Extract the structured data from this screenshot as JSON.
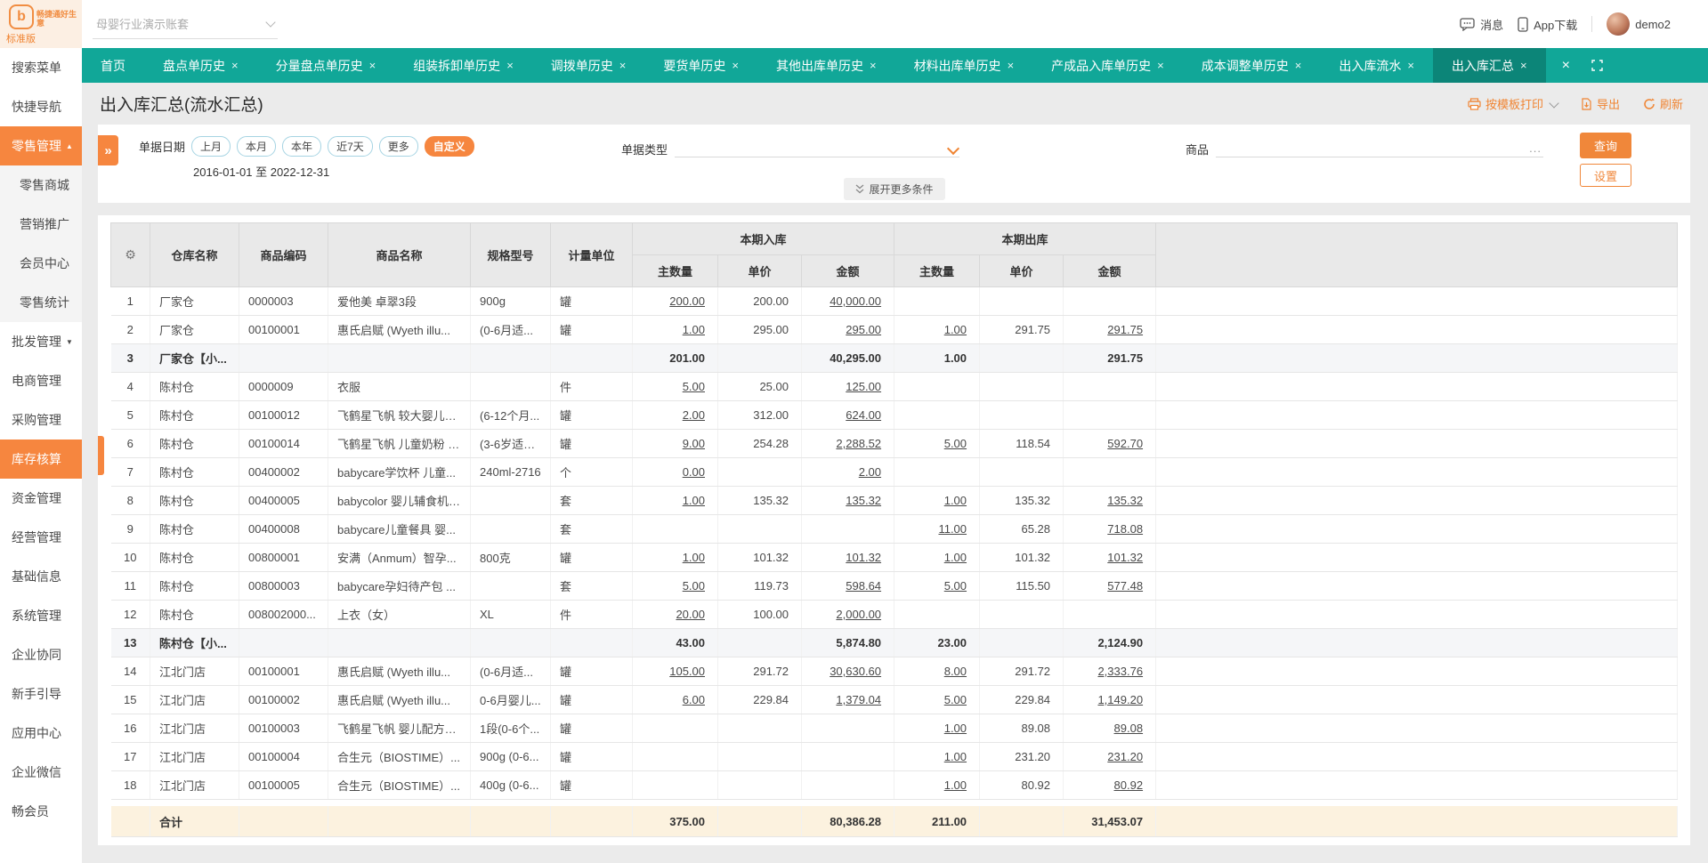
{
  "brand": {
    "name": "畅捷通好生意",
    "edition": "标准版",
    "orange": "#F18D42"
  },
  "topbar": {
    "account": "母婴行业演示账套",
    "message": "消息",
    "app_download": "App下载",
    "user": "demo2"
  },
  "tabs": [
    {
      "label": "首页",
      "closable": false,
      "active": false
    },
    {
      "label": "盘点单历史",
      "closable": true,
      "active": false
    },
    {
      "label": "分量盘点单历史",
      "closable": true,
      "active": false
    },
    {
      "label": "组装拆卸单历史",
      "closable": true,
      "active": false
    },
    {
      "label": "调拨单历史",
      "closable": true,
      "active": false
    },
    {
      "label": "要货单历史",
      "closable": true,
      "active": false
    },
    {
      "label": "其他出库单历史",
      "closable": true,
      "active": false
    },
    {
      "label": "材料出库单历史",
      "closable": true,
      "active": false
    },
    {
      "label": "产成品入库单历史",
      "closable": true,
      "active": false
    },
    {
      "label": "成本调整单历史",
      "closable": true,
      "active": false
    },
    {
      "label": "出入库流水",
      "closable": true,
      "active": false
    },
    {
      "label": "出入库汇总",
      "closable": true,
      "active": true
    }
  ],
  "sidebar": {
    "items": [
      {
        "label": "搜索菜单"
      },
      {
        "label": "快捷导航"
      },
      {
        "label": "零售管理",
        "active": true,
        "arrow": "up"
      },
      {
        "label": "零售商城",
        "sub": true
      },
      {
        "label": "营销推广",
        "sub": true
      },
      {
        "label": "会员中心",
        "sub": true
      },
      {
        "label": "零售统计",
        "sub": true
      },
      {
        "label": "批发管理",
        "arrow": "down"
      },
      {
        "label": "电商管理"
      },
      {
        "label": "采购管理"
      },
      {
        "label": "库存核算",
        "active": true
      },
      {
        "label": "资金管理"
      },
      {
        "label": "经营管理"
      },
      {
        "label": "基础信息"
      },
      {
        "label": "系统管理"
      },
      {
        "label": "企业协同"
      },
      {
        "label": "新手引导"
      },
      {
        "label": "应用中心"
      },
      {
        "label": "企业微信"
      },
      {
        "label": "畅会员"
      }
    ]
  },
  "page": {
    "title": "出入库汇总(流水汇总)",
    "actions": {
      "print": "按模板打印",
      "export": "导出",
      "refresh": "刷新"
    }
  },
  "filters": {
    "date_label": "单据日期",
    "date_chips": [
      "上月",
      "本月",
      "本年",
      "近7天",
      "更多"
    ],
    "custom_chip": "自定义",
    "date_range": "2016-01-01 至 2022-12-31",
    "doc_type_label": "单据类型",
    "product_label": "商品",
    "product_ellipsis": "...",
    "search_btn": "查询",
    "settings_btn": "设置",
    "expand_more": "展开更多条件"
  },
  "table": {
    "columns": {
      "warehouse": "仓库名称",
      "code": "商品编码",
      "name": "商品名称",
      "spec": "规格型号",
      "unit": "计量单位",
      "group_in": "本期入库",
      "group_out": "本期出库",
      "qty": "主数量",
      "price": "单价",
      "amount": "金额"
    },
    "rows": [
      {
        "no": "1",
        "warehouse": "厂家仓",
        "code": "0000003",
        "name": "爱他美 卓翠3段",
        "spec": "900g",
        "unit": "罐",
        "in_qty": "200.00",
        "in_price": "200.00",
        "in_amount": "40,000.00",
        "out_qty": "",
        "out_price": "",
        "out_amount": "",
        "subtotal": false
      },
      {
        "no": "2",
        "warehouse": "厂家仓",
        "code": "00100001",
        "name": "惠氏启赋 (Wyeth illu...",
        "spec": "(0-6月适...",
        "unit": "罐",
        "in_qty": "1.00",
        "in_price": "295.00",
        "in_amount": "295.00",
        "out_qty": "1.00",
        "out_price": "291.75",
        "out_amount": "291.75",
        "subtotal": false
      },
      {
        "no": "3",
        "warehouse": "厂家仓【小...",
        "code": "",
        "name": "",
        "spec": "",
        "unit": "",
        "in_qty": "201.00",
        "in_price": "",
        "in_amount": "40,295.00",
        "out_qty": "1.00",
        "out_price": "",
        "out_amount": "291.75",
        "subtotal": true
      },
      {
        "no": "4",
        "warehouse": "陈村仓",
        "code": "0000009",
        "name": "衣服",
        "spec": "",
        "unit": "件",
        "in_qty": "5.00",
        "in_price": "25.00",
        "in_amount": "125.00",
        "out_qty": "",
        "out_price": "",
        "out_amount": "",
        "subtotal": false
      },
      {
        "no": "5",
        "warehouse": "陈村仓",
        "code": "00100012",
        "name": "飞鹤星飞帆 较大婴儿配...",
        "spec": "(6-12个月...",
        "unit": "罐",
        "in_qty": "2.00",
        "in_price": "312.00",
        "in_amount": "624.00",
        "out_qty": "",
        "out_price": "",
        "out_amount": "",
        "subtotal": false
      },
      {
        "no": "6",
        "warehouse": "陈村仓",
        "code": "00100014",
        "name": "飞鹤星飞帆 儿童奶粉 4...",
        "spec": "(3-6岁适用)...",
        "unit": "罐",
        "in_qty": "9.00",
        "in_price": "254.28",
        "in_amount": "2,288.52",
        "out_qty": "5.00",
        "out_price": "118.54",
        "out_amount": "592.70",
        "subtotal": false
      },
      {
        "no": "7",
        "warehouse": "陈村仓",
        "code": "00400002",
        "name": "babycare学饮杯 儿童...",
        "spec": "240ml-2716",
        "unit": "个",
        "in_qty": "0.00",
        "in_price": "",
        "in_amount": "2.00",
        "out_qty": "",
        "out_price": "",
        "out_amount": "",
        "subtotal": false
      },
      {
        "no": "8",
        "warehouse": "陈村仓",
        "code": "00400005",
        "name": "babycolor 婴儿辅食机 ...",
        "spec": "",
        "unit": "套",
        "in_qty": "1.00",
        "in_price": "135.32",
        "in_amount": "135.32",
        "out_qty": "1.00",
        "out_price": "135.32",
        "out_amount": "135.32",
        "subtotal": false
      },
      {
        "no": "9",
        "warehouse": "陈村仓",
        "code": "00400008",
        "name": "babycare儿童餐具 婴...",
        "spec": "",
        "unit": "套",
        "in_qty": "",
        "in_price": "",
        "in_amount": "",
        "out_qty": "11.00",
        "out_price": "65.28",
        "out_amount": "718.08",
        "subtotal": false
      },
      {
        "no": "10",
        "warehouse": "陈村仓",
        "code": "00800001",
        "name": "安满（Anmum）智孕...",
        "spec": "800克",
        "unit": "罐",
        "in_qty": "1.00",
        "in_price": "101.32",
        "in_amount": "101.32",
        "out_qty": "1.00",
        "out_price": "101.32",
        "out_amount": "101.32",
        "subtotal": false
      },
      {
        "no": "11",
        "warehouse": "陈村仓",
        "code": "00800003",
        "name": "babycare孕妇待产包 ...",
        "spec": "",
        "unit": "套",
        "in_qty": "5.00",
        "in_price": "119.73",
        "in_amount": "598.64",
        "out_qty": "5.00",
        "out_price": "115.50",
        "out_amount": "577.48",
        "subtotal": false
      },
      {
        "no": "12",
        "warehouse": "陈村仓",
        "code": "008002000...",
        "name": "上衣（女）",
        "spec": "XL",
        "unit": "件",
        "in_qty": "20.00",
        "in_price": "100.00",
        "in_amount": "2,000.00",
        "out_qty": "",
        "out_price": "",
        "out_amount": "",
        "subtotal": false
      },
      {
        "no": "13",
        "warehouse": "陈村仓【小...",
        "code": "",
        "name": "",
        "spec": "",
        "unit": "",
        "in_qty": "43.00",
        "in_price": "",
        "in_amount": "5,874.80",
        "out_qty": "23.00",
        "out_price": "",
        "out_amount": "2,124.90",
        "subtotal": true
      },
      {
        "no": "14",
        "warehouse": "江北门店",
        "code": "00100001",
        "name": "惠氏启赋 (Wyeth illu...",
        "spec": "(0-6月适...",
        "unit": "罐",
        "in_qty": "105.00",
        "in_price": "291.72",
        "in_amount": "30,630.60",
        "out_qty": "8.00",
        "out_price": "291.72",
        "out_amount": "2,333.76",
        "subtotal": false
      },
      {
        "no": "15",
        "warehouse": "江北门店",
        "code": "00100002",
        "name": "惠氏启赋 (Wyeth illu...",
        "spec": "0-6月婴儿...",
        "unit": "罐",
        "in_qty": "6.00",
        "in_price": "229.84",
        "in_amount": "1,379.04",
        "out_qty": "5.00",
        "out_price": "229.84",
        "out_amount": "1,149.20",
        "subtotal": false
      },
      {
        "no": "16",
        "warehouse": "江北门店",
        "code": "00100003",
        "name": "飞鹤星飞帆 婴儿配方奶...",
        "spec": "1段(0-6个...",
        "unit": "罐",
        "in_qty": "",
        "in_price": "",
        "in_amount": "",
        "out_qty": "1.00",
        "out_price": "89.08",
        "out_amount": "89.08",
        "subtotal": false
      },
      {
        "no": "17",
        "warehouse": "江北门店",
        "code": "00100004",
        "name": "合生元（BIOSTIME）...",
        "spec": "900g (0-6...",
        "unit": "罐",
        "in_qty": "",
        "in_price": "",
        "in_amount": "",
        "out_qty": "1.00",
        "out_price": "231.20",
        "out_amount": "231.20",
        "subtotal": false
      },
      {
        "no": "18",
        "warehouse": "江北门店",
        "code": "00100005",
        "name": "合生元（BIOSTIME）...",
        "spec": "400g (0-6...",
        "unit": "罐",
        "in_qty": "",
        "in_price": "",
        "in_amount": "",
        "out_qty": "1.00",
        "out_price": "80.92",
        "out_amount": "80.92",
        "subtotal": false
      }
    ],
    "total": {
      "label": "合计",
      "in_qty": "375.00",
      "in_price": "",
      "in_amount": "80,386.28",
      "out_qty": "211.00",
      "out_price": "",
      "out_amount": "31,453.07"
    }
  },
  "colors": {
    "teal": "#11A798",
    "teal_dark": "#0C8578",
    "orange": "#F6863F",
    "total_row": "#FCF2DF"
  }
}
